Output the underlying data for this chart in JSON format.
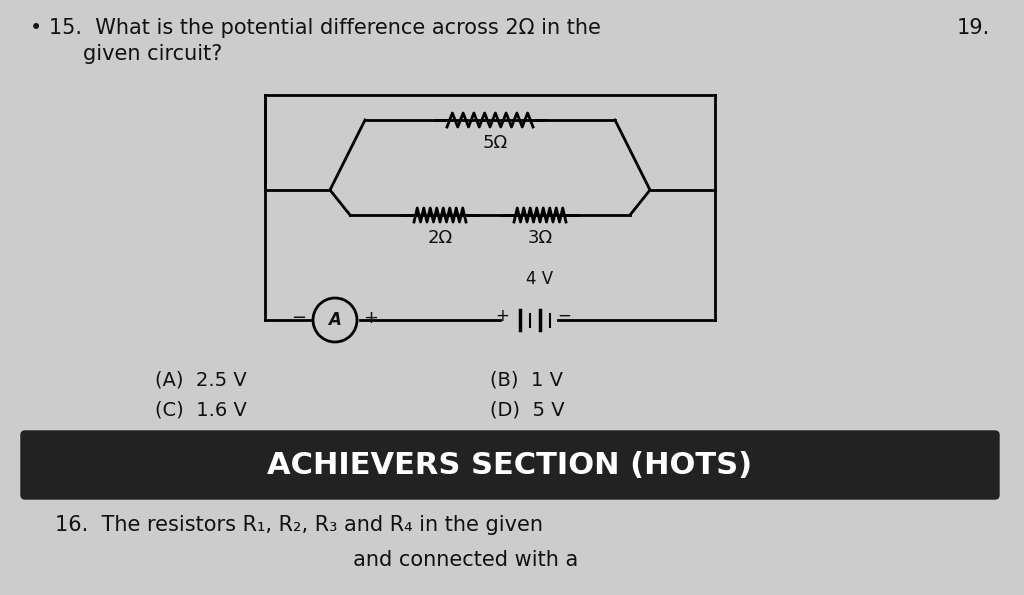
{
  "bg_color": "#cccccc",
  "title_line1": "• 15.  What is the potential difference across 2Ω in the",
  "title_line2": "        given circuit?",
  "question_number_right": "19.",
  "options": [
    {
      "label": "(A)",
      "value": "2.5 V",
      "col": 0
    },
    {
      "label": "(B)",
      "value": "1 V",
      "col": 1
    },
    {
      "label": "(C)",
      "value": "1.6 V",
      "col": 0
    },
    {
      "label": "(D)",
      "value": "5 V",
      "col": 1
    }
  ],
  "section_banner_text": "ACHIEVERS SECTION (HOTS)",
  "section_banner_bg": "#222222",
  "section_banner_fg": "#ffffff",
  "bottom_text": "16.  The resistors R₁, R₂, R₃ and R₄ in the given",
  "bottom_text2": "                                             and connected with a",
  "circuit": {
    "r5_label": "5Ω",
    "r2_label": "2Ω",
    "r3_label": "3Ω",
    "v_label": "4 V",
    "ammeter_label": "A"
  },
  "text_color": "#111111",
  "font_size_question": 15,
  "font_size_options": 14,
  "font_size_section": 22,
  "font_size_circuit": 13
}
